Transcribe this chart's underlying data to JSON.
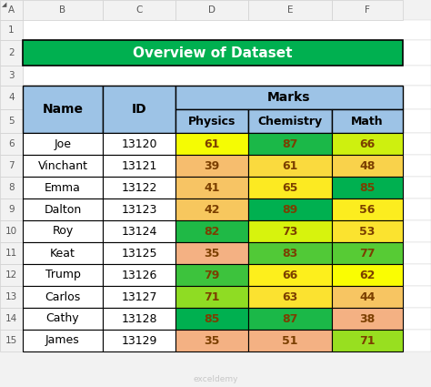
{
  "title": "Overview of Dataset",
  "title_bg": "#00B050",
  "title_color": "#FFFFFF",
  "header_bg": "#9DC3E6",
  "names": [
    "Joe",
    "Vinchant",
    "Emma",
    "Dalton",
    "Roy",
    "Keat",
    "Trump",
    "Carlos",
    "Cathy",
    "James"
  ],
  "ids": [
    13120,
    13121,
    13122,
    13123,
    13124,
    13125,
    13126,
    13127,
    13128,
    13129
  ],
  "physics": [
    61,
    39,
    41,
    42,
    82,
    35,
    79,
    71,
    85,
    35
  ],
  "chemistry": [
    87,
    61,
    65,
    89,
    73,
    83,
    66,
    63,
    87,
    51
  ],
  "math": [
    66,
    48,
    85,
    56,
    53,
    77,
    62,
    44,
    38,
    71
  ],
  "color_low": "#F4B183",
  "color_mid": "#FFFF00",
  "color_high": "#00B050",
  "text_color_data": "#7B3F00",
  "col_header_label_color": "#595959",
  "row_header_label_color": "#595959",
  "excel_bg": "#F2F2F2",
  "col_header_bg": "#F2F2F2",
  "row_header_bg": "#F2F2F2",
  "grid_line_color": "#D0D0D0",
  "table_border_color": "#000000",
  "sub_cols": [
    "Physics",
    "Chemistry",
    "Math"
  ]
}
